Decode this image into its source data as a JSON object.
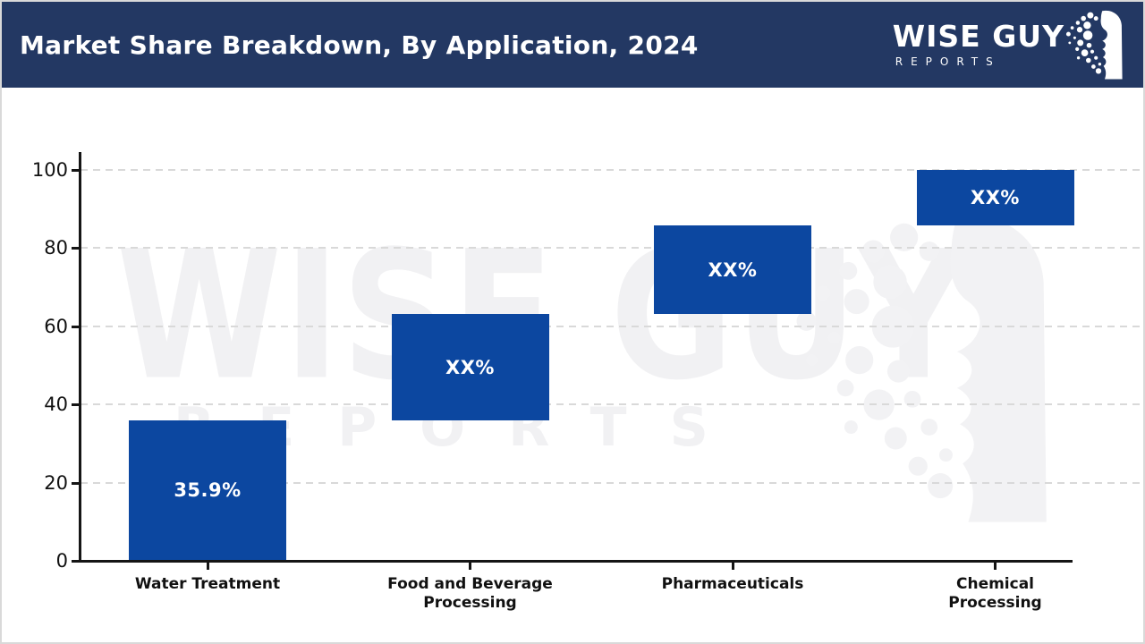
{
  "header": {
    "title": "Market Share Breakdown, By Application, 2024",
    "logo": {
      "line1": "WISE GUY",
      "line2": "REPORTS"
    }
  },
  "watermark": {
    "line1": "WISE GUY",
    "line2": "REPORTS"
  },
  "colors": {
    "header_bg": "#233863",
    "bar": "#0c47a0",
    "grid": "#d9d9d9",
    "watermark_text": "#f1f1f3",
    "watermark_face": "#f2f2f4",
    "page_border": "#d9d9d9",
    "axis": "#151515",
    "title_text": "#ffffff",
    "bar_label_text": "#ffffff"
  },
  "chart_data": {
    "type": "bar",
    "subtype": "waterfall",
    "title": "Market Share Breakdown, By Application, 2024",
    "xlabel": "",
    "ylabel": "",
    "categories": [
      "Water Treatment",
      "Food and Beverage\nProcessing",
      "Pharmaceuticals",
      "Chemical\nProcessing"
    ],
    "segments": [
      {
        "start": 0,
        "end": 35.9,
        "label": "35.9%"
      },
      {
        "start": 35.9,
        "end": 63.0,
        "label": "XX%"
      },
      {
        "start": 63.0,
        "end": 85.7,
        "label": "XX%"
      },
      {
        "start": 85.7,
        "end": 100,
        "label": "XX%"
      }
    ],
    "ylim": [
      0,
      100
    ],
    "yticks": [
      0,
      20,
      40,
      60,
      80,
      100
    ],
    "grid": "horizontal-dashed",
    "legend": "none"
  }
}
